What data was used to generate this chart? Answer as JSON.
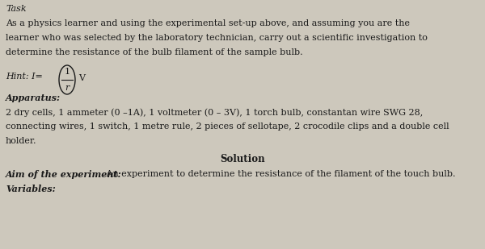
{
  "bg_color": "#cdc8bc",
  "text_color": "#1a1a1a",
  "title": "Task",
  "para1_line1": "As a physics learner and using the experimental set-up above, and assuming you are the",
  "para1_line2": "learner who was selected by the laboratory technician, carry out a scientific investigation to",
  "para1_line3": "determine the resistance of the bulb filament of the sample bulb.",
  "hint_label": "Hint: I=",
  "apparatus_label": "Apparatus:",
  "apparatus_line1": "2 dry cells, 1 ammeter (0 –1A), 1 voltmeter (0 – 3V), 1 torch bulb, constantan wire SWG 28,",
  "apparatus_line2": "connecting wires, 1 switch, 1 metre rule, 2 pieces of sellotape, 2 crocodile clips and a double cell",
  "apparatus_line3": "holder.",
  "solution_label": "Solution",
  "aim_bold": "Aim of the experiment:",
  "aim_rest": " An experiment to determine the resistance of the filament of the touch bulb.",
  "variables_label": "Variables:"
}
